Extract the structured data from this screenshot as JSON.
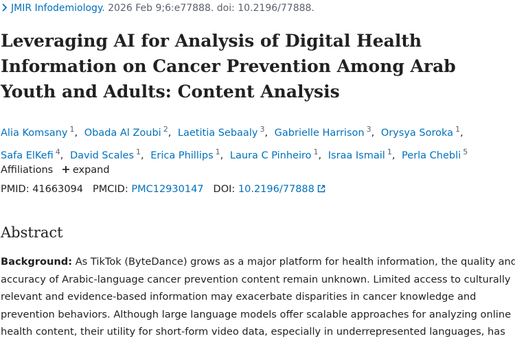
{
  "citation": {
    "journal": "JMIR Infodemiology.",
    "details": "2026 Feb 9;6:e77888. doi: 10.2196/77888."
  },
  "title": "Leveraging AI for Analysis of Digital Health Information on Cancer Prevention Among Arab Youth and Adults: Content Analysis",
  "authors": [
    {
      "name": "Alia Komsany",
      "affiliation": "1"
    },
    {
      "name": "Obada Al Zoubi",
      "affiliation": "2"
    },
    {
      "name": "Laetitia Sebaaly",
      "affiliation": "3"
    },
    {
      "name": "Gabrielle Harrison",
      "affiliation": "3"
    },
    {
      "name": "Orysya Soroka",
      "affiliation": "1"
    },
    {
      "name": "Safa ElKefi",
      "affiliation": "4"
    },
    {
      "name": "David Scales",
      "affiliation": "1"
    },
    {
      "name": "Erica Phillips",
      "affiliation": "1"
    },
    {
      "name": "Laura C Pinheiro",
      "affiliation": "1"
    },
    {
      "name": "Israa Ismail",
      "affiliation": "1"
    },
    {
      "name": "Perla Chebli",
      "affiliation": "5"
    }
  ],
  "affiliations": {
    "label": "Affiliations",
    "toggle": "expand"
  },
  "identifiers": [
    {
      "label": "PMID:",
      "value": "41663094"
    },
    {
      "label": "PMCID:",
      "value": "PMC12930147"
    },
    {
      "label": "DOI:",
      "value": "10.2196/77888"
    }
  ],
  "abstract": {
    "heading": "Abstract",
    "background_label": "Background:",
    "background_lines": [
      "As TikTok (ByteDance) grows as a major platform for health information, the quality and",
      "accuracy of Arabic-language cancer prevention content remain unknown. Limited access to culturally",
      "relevant and evidence-based information may exacerbate disparities in cancer knowledge and",
      "prevention behaviors. Although large language models offer scalable approaches for analyzing online",
      "health content, their utility for short-form video data, especially in underrepresented languages, has"
    ]
  }
}
